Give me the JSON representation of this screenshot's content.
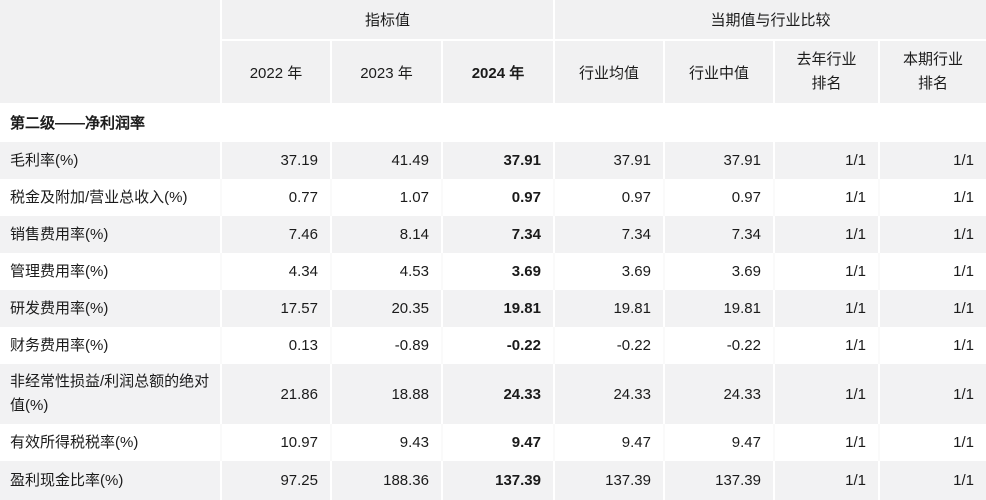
{
  "page": {
    "background": "#ffffff",
    "stripe_color": "#f2f2f3",
    "header_bg": "#f1f1f2",
    "text_color": "#1b1b1b"
  },
  "chart_data": {
    "type": "table",
    "title": "",
    "header_groups": [
      {
        "label": "指标值",
        "span": 3
      },
      {
        "label": "当期值与行业比较",
        "span": 4
      }
    ],
    "columns": [
      "2022 年",
      "2023 年",
      "2024 年",
      "行业均值",
      "行业中值",
      "去年行业\n排名",
      "本期行业\n排名"
    ],
    "section_title": "第二级——净利润率",
    "rows": [
      {
        "label": "毛利率(%)",
        "values": [
          "37.19",
          "41.49",
          "37.91",
          "37.91",
          "37.91",
          "1/1",
          "1/1"
        ]
      },
      {
        "label": "税金及附加/营业总收入(%)",
        "values": [
          "0.77",
          "1.07",
          "0.97",
          "0.97",
          "0.97",
          "1/1",
          "1/1"
        ]
      },
      {
        "label": "销售费用率(%)",
        "values": [
          "7.46",
          "8.14",
          "7.34",
          "7.34",
          "7.34",
          "1/1",
          "1/1"
        ]
      },
      {
        "label": "管理费用率(%)",
        "values": [
          "4.34",
          "4.53",
          "3.69",
          "3.69",
          "3.69",
          "1/1",
          "1/1"
        ]
      },
      {
        "label": "研发费用率(%)",
        "values": [
          "17.57",
          "20.35",
          "19.81",
          "19.81",
          "19.81",
          "1/1",
          "1/1"
        ]
      },
      {
        "label": "财务费用率(%)",
        "values": [
          "0.13",
          "-0.89",
          "-0.22",
          "-0.22",
          "-0.22",
          "1/1",
          "1/1"
        ]
      },
      {
        "label": "非经常性损益/利润总额的绝对值(%)",
        "values": [
          "21.86",
          "18.88",
          "24.33",
          "24.33",
          "24.33",
          "1/1",
          "1/1"
        ]
      },
      {
        "label": "有效所得税税率(%)",
        "values": [
          "10.97",
          "9.43",
          "9.47",
          "9.47",
          "9.47",
          "1/1",
          "1/1"
        ]
      },
      {
        "label": "盈利现金比率(%)",
        "values": [
          "97.25",
          "188.36",
          "137.39",
          "137.39",
          "137.39",
          "1/1",
          "1/1"
        ]
      }
    ]
  }
}
